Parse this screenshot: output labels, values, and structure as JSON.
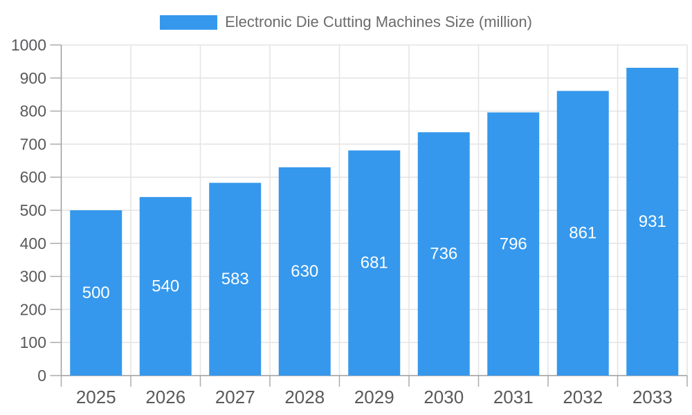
{
  "chart_data": {
    "type": "bar",
    "title": "Electronic Die Cutting Machines Size (million)",
    "categories": [
      "2025",
      "2026",
      "2027",
      "2028",
      "2029",
      "2030",
      "2031",
      "2032",
      "2033"
    ],
    "series": [
      {
        "name": "Electronic Die Cutting Machines Size (million)",
        "values": [
          500,
          540,
          583,
          630,
          681,
          736,
          796,
          861,
          931
        ]
      }
    ],
    "xlabel": "",
    "ylabel": "",
    "ylim": [
      0,
      1000
    ],
    "ytick_step": 100,
    "yticks": [
      0,
      100,
      200,
      300,
      400,
      500,
      600,
      700,
      800,
      900,
      1000
    ],
    "grid": true,
    "legend_position": "top-center",
    "value_label_position": "inside-center",
    "colors": {
      "bar": "#3598EC",
      "value_label": "#FFFFFF",
      "grid": "#E3E3E3",
      "axis": "#9C9C9C",
      "tick": "#ABABAB",
      "tick_label": "#58595B",
      "legend_text": "#6B6B6B",
      "background": "#FFFFFF"
    }
  }
}
